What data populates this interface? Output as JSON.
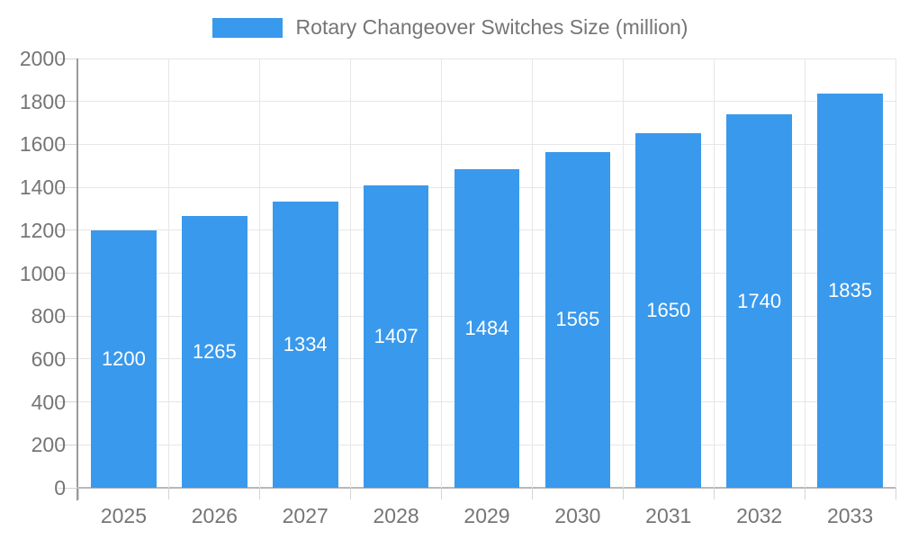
{
  "legend": {
    "label": "Rotary Changeover Switches Size (million)",
    "swatch_color": "#3999ec"
  },
  "chart_data": {
    "type": "bar",
    "title": "Rotary Changeover Switches Size (million)",
    "categories": [
      "2025",
      "2026",
      "2027",
      "2028",
      "2029",
      "2030",
      "2031",
      "2032",
      "2033"
    ],
    "values": [
      1200,
      1265,
      1334,
      1407,
      1484,
      1565,
      1650,
      1740,
      1835
    ],
    "series": [
      {
        "name": "Rotary Changeover Switches Size (million)",
        "values": [
          1200,
          1265,
          1334,
          1407,
          1484,
          1565,
          1650,
          1740,
          1835
        ]
      }
    ],
    "xlabel": "",
    "ylabel": "",
    "ylim": [
      0,
      2000
    ],
    "yticks": [
      0,
      200,
      400,
      600,
      800,
      1000,
      1200,
      1400,
      1600,
      1800,
      2000
    ],
    "grid": true,
    "legend_position": "top-center",
    "bar_color": "#3999ec",
    "value_label_position": "inside-center",
    "value_label_color": "#ffffff"
  },
  "colors": {
    "background": "#ffffff",
    "grid_line": "#e6e6e6",
    "x_axis_line": "#b8b8b8",
    "y_axis_line": "#9a9a9a",
    "tick": "#d4d4d4",
    "axis_label_text": "#757575"
  }
}
